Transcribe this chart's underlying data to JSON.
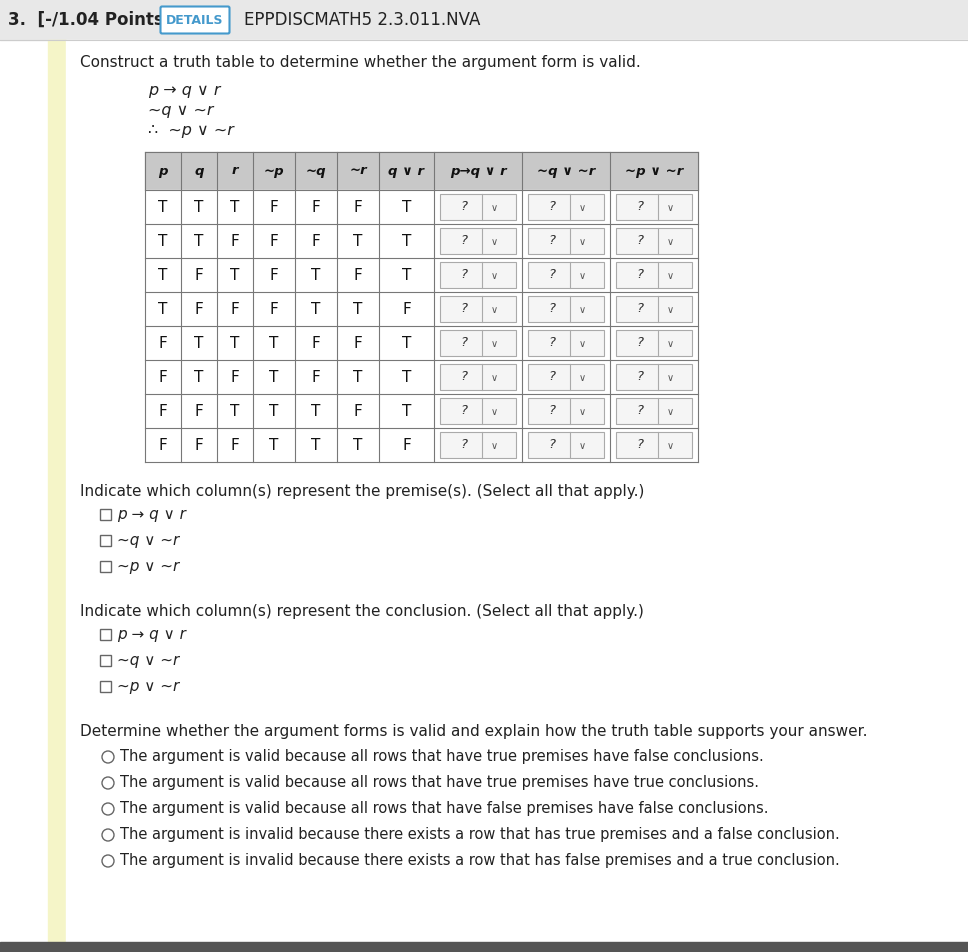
{
  "header_title": "3.  [-/1.04 Points]",
  "details_btn": "DETAILS",
  "course_code": "EPPDISCMATH5 2.3.011.NVA",
  "instruction": "Construct a truth table to determine whether the argument form is valid.",
  "premise_line1": "p → q ∨ r",
  "premise_line2": "~q ∨ ~r",
  "premise_line3": "∴  ~p ∨ ~r",
  "col_headers": [
    "p",
    "q",
    "r",
    "~p",
    "~q",
    "~r",
    "q ∨ r",
    "p→q ∨ r",
    "~q ∨ ~r",
    "~p ∨ ~r"
  ],
  "table_data": [
    [
      "T",
      "T",
      "T",
      "F",
      "F",
      "F",
      "T"
    ],
    [
      "T",
      "T",
      "F",
      "F",
      "F",
      "T",
      "T"
    ],
    [
      "T",
      "F",
      "T",
      "F",
      "T",
      "F",
      "T"
    ],
    [
      "T",
      "F",
      "F",
      "F",
      "T",
      "T",
      "F"
    ],
    [
      "F",
      "T",
      "T",
      "T",
      "F",
      "F",
      "T"
    ],
    [
      "F",
      "T",
      "F",
      "T",
      "F",
      "T",
      "T"
    ],
    [
      "F",
      "F",
      "T",
      "T",
      "T",
      "F",
      "T"
    ],
    [
      "F",
      "F",
      "F",
      "T",
      "T",
      "T",
      "F"
    ]
  ],
  "premise_section_title": "Indicate which column(s) represent the premise(s). (Select all that apply.)",
  "premise_choices": [
    "p → q ∨ r",
    "~q ∨ ~r",
    "~p ∨ ~r"
  ],
  "conclusion_section_title": "Indicate which column(s) represent the conclusion. (Select all that apply.)",
  "conclusion_choices": [
    "p → q ∨ r",
    "~q ∨ ~r",
    "~p ∨ ~r"
  ],
  "validity_title": "Determine whether the argument forms is valid and explain how the truth table supports your answer.",
  "validity_choices": [
    "The argument is valid because all rows that have true premises have false conclusions.",
    "The argument is valid because all rows that have true premises have true conclusions.",
    "The argument is valid because all rows that have false premises have false conclusions.",
    "The argument is invalid because there exists a row that has true premises and a false conclusion.",
    "The argument is invalid because there exists a row that has false premises and a true conclusion."
  ],
  "bg_color": "#ffffff",
  "header_bg": "#e8e8e8",
  "left_stripe_color": "#f5f5c8",
  "table_header_bg": "#c8c8c8",
  "table_border_color": "#555555",
  "details_btn_color": "#4499cc"
}
